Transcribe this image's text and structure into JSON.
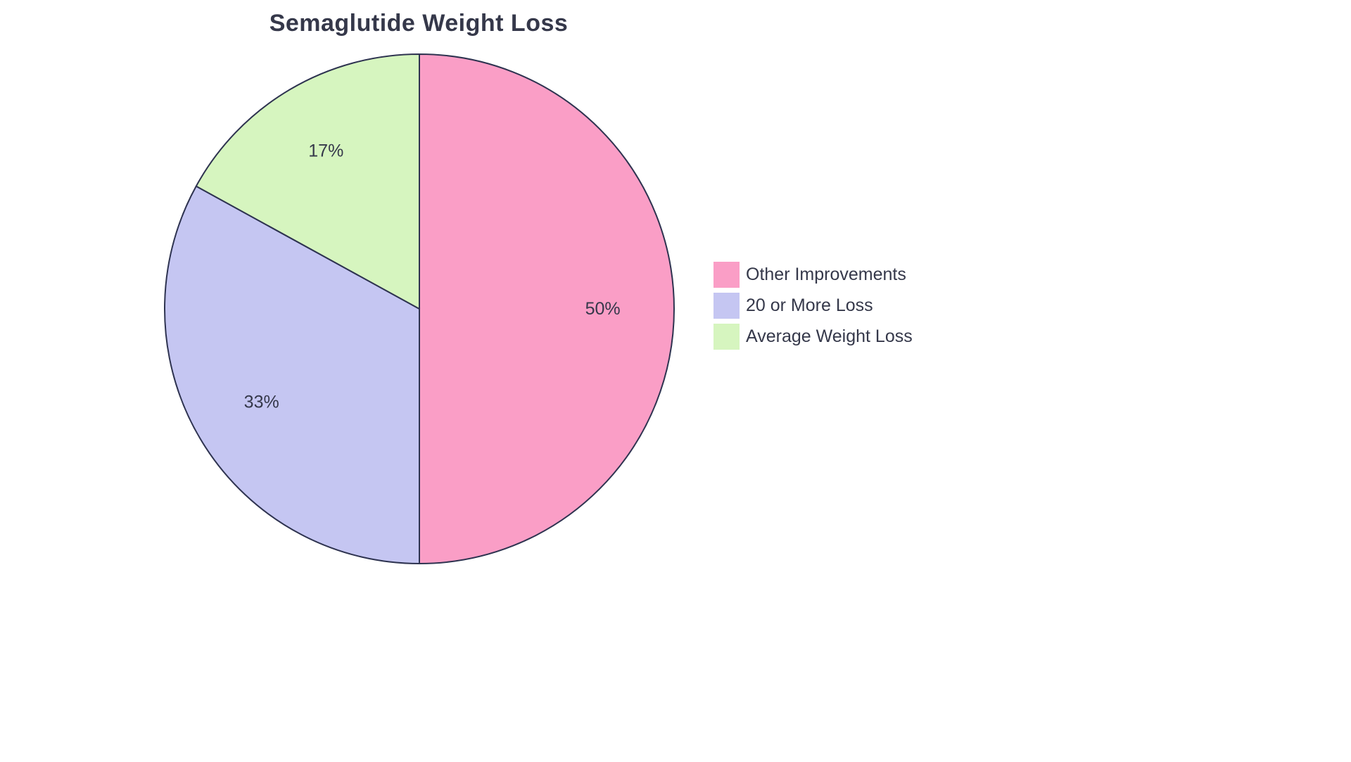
{
  "chart_data": {
    "type": "pie",
    "title": "Semaglutide Weight Loss",
    "legend_position": "right",
    "start_angle_deg": 0,
    "direction": "clockwise",
    "stroke_color": "#2e3350",
    "label_color": "#35384a",
    "slices": [
      {
        "label": "Other Improvements",
        "value": 50,
        "pct_label": "50%",
        "color": "#fa9ec6"
      },
      {
        "label": "20 or More Loss",
        "value": 33,
        "pct_label": "33%",
        "color": "#c5c6f2"
      },
      {
        "label": "Average Weight Loss",
        "value": 17,
        "pct_label": "17%",
        "color": "#d6f5bf"
      }
    ]
  }
}
